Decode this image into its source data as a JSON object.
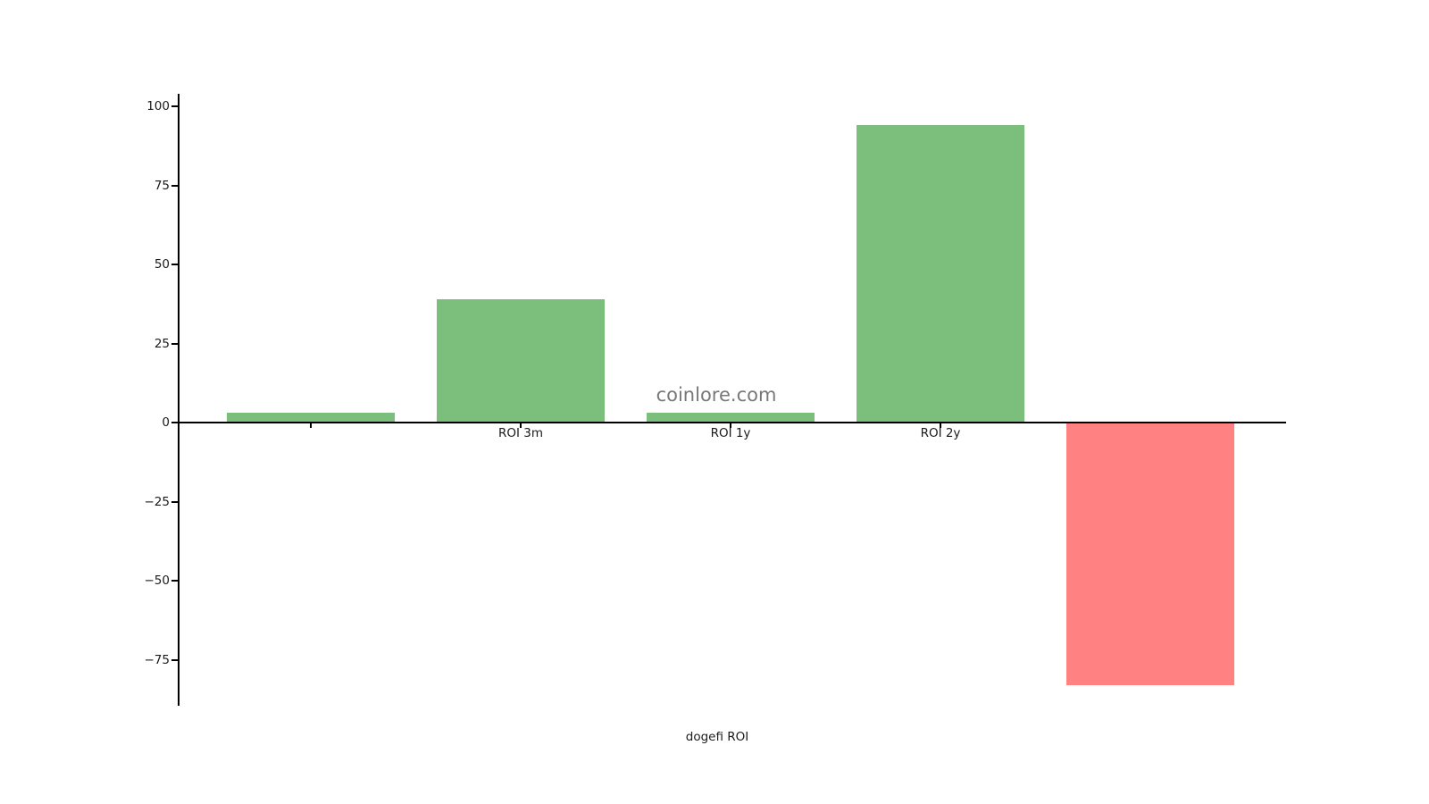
{
  "chart_data": {
    "type": "bar",
    "categories": [
      "",
      "ROI 3m",
      "ROI 1y",
      "ROI 2y",
      ""
    ],
    "values": [
      3,
      39,
      3,
      94,
      -83
    ],
    "bar_colors": [
      "#7cbe7c",
      "#7cbe7c",
      "#7cbe7c",
      "#7cbe7c",
      "#ff8181"
    ],
    "positive_color": "#7cbe7c",
    "negative_color": "#ff8181",
    "title": "dogefi ROI",
    "xlabel": "",
    "ylabel": "",
    "yticks": [
      100,
      75,
      50,
      25,
      0,
      -25,
      -50,
      -75
    ],
    "ylim": [
      -90,
      104
    ],
    "grid": false,
    "legend": "none",
    "watermark": "coinlore.com"
  },
  "colors": {
    "axis": "#000000",
    "tick_text": "#1a1a1a",
    "watermark_text": "#787878",
    "background": "#ffffff"
  }
}
